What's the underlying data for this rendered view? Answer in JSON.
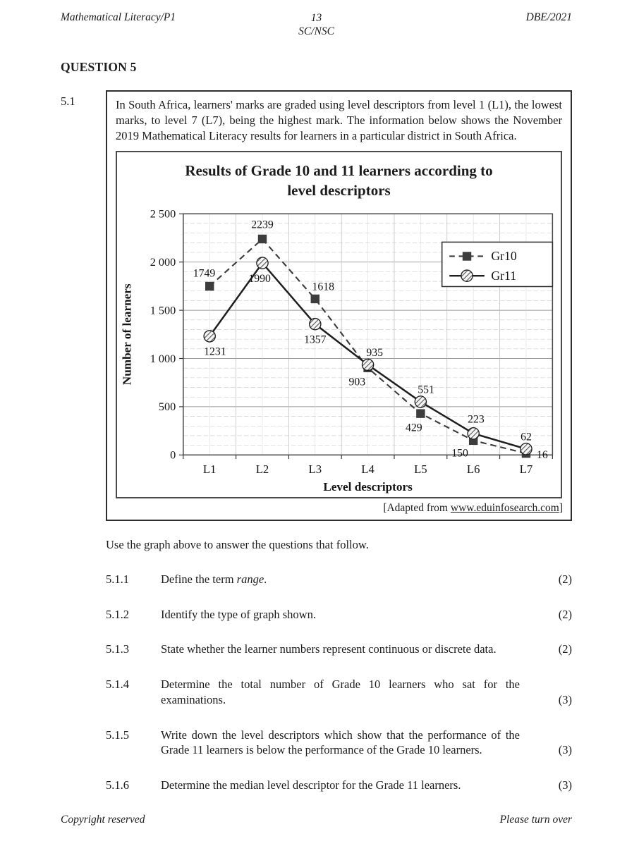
{
  "header": {
    "left": "Mathematical Literacy/P1",
    "page_number": "13",
    "center_sub": "SC/NSC",
    "right": "DBE/2021"
  },
  "question_heading": "QUESTION 5",
  "q51_number": "5.1",
  "q51_intro": "In South Africa, learners' marks are graded using level descriptors from level 1 (L1), the lowest marks, to level 7 (L7), being the highest mark. The information below shows the November 2019 Mathematical Literacy results for learners in a particular district in South Africa.",
  "source_prefix": "[Adapted from ",
  "source_link": "www.eduinfosearch.com",
  "source_suffix": "]",
  "instruction": "Use the graph above to answer the questions that follow.",
  "questions": [
    {
      "number": "5.1.1",
      "pre": "Define the term ",
      "em": "range",
      "post": ".",
      "marks": "(2)"
    },
    {
      "number": "5.1.2",
      "text": "Identify the type of graph shown.",
      "marks": "(2)"
    },
    {
      "number": "5.1.3",
      "text": "State whether the learner numbers represent continuous or discrete data.",
      "marks": "(2)"
    },
    {
      "number": "5.1.4",
      "text": "Determine the total number of Grade 10 learners who sat for the examinations.",
      "marks": "(3)"
    },
    {
      "number": "5.1.5",
      "text": "Write down the level descriptors which show that the performance of the Grade 11 learners is below the performance of the Grade 10 learners.",
      "marks": "(3)"
    },
    {
      "number": "5.1.6",
      "text": "Determine the median level descriptor for the Grade 11 learners.",
      "marks": "(3)"
    }
  ],
  "footer": {
    "left": "Copyright reserved",
    "right": "Please turn over"
  },
  "chart_data": {
    "type": "line",
    "title": "Results of Grade 10 and 11 learners according to level descriptors",
    "xlabel": "Level descriptors",
    "ylabel": "Number of learners",
    "categories": [
      "L1",
      "L2",
      "L3",
      "L4",
      "L5",
      "L6",
      "L7"
    ],
    "series": [
      {
        "name": "Gr10",
        "line": "dashed",
        "marker": "filled-square",
        "values": [
          1749,
          2239,
          1618,
          903,
          429,
          150,
          16
        ],
        "label_offsets": [
          [
            -8,
            -14
          ],
          [
            0,
            -16
          ],
          [
            12,
            -13
          ],
          [
            -16,
            26
          ],
          [
            -10,
            26
          ],
          [
            -20,
            24
          ],
          [
            24,
            7
          ]
        ]
      },
      {
        "name": "Gr11",
        "line": "solid",
        "marker": "hatched-circle",
        "values": [
          1231,
          1990,
          1357,
          935,
          551,
          223,
          62
        ],
        "label_offsets": [
          [
            8,
            28
          ],
          [
            -4,
            28
          ],
          [
            0,
            28
          ],
          [
            10,
            -13
          ],
          [
            8,
            -13
          ],
          [
            4,
            -16
          ],
          [
            0,
            -13
          ]
        ]
      }
    ],
    "ylim": [
      0,
      2500
    ],
    "ytick_step": 500,
    "ytick_minor_step": 100,
    "ytick_labels": [
      "0",
      "500",
      "1 000",
      "1 500",
      "2 000",
      "2 500"
    ],
    "grid": true,
    "legend_position": "upper-right",
    "source_note": "[Adapted from www.eduinfosearch.com]"
  }
}
